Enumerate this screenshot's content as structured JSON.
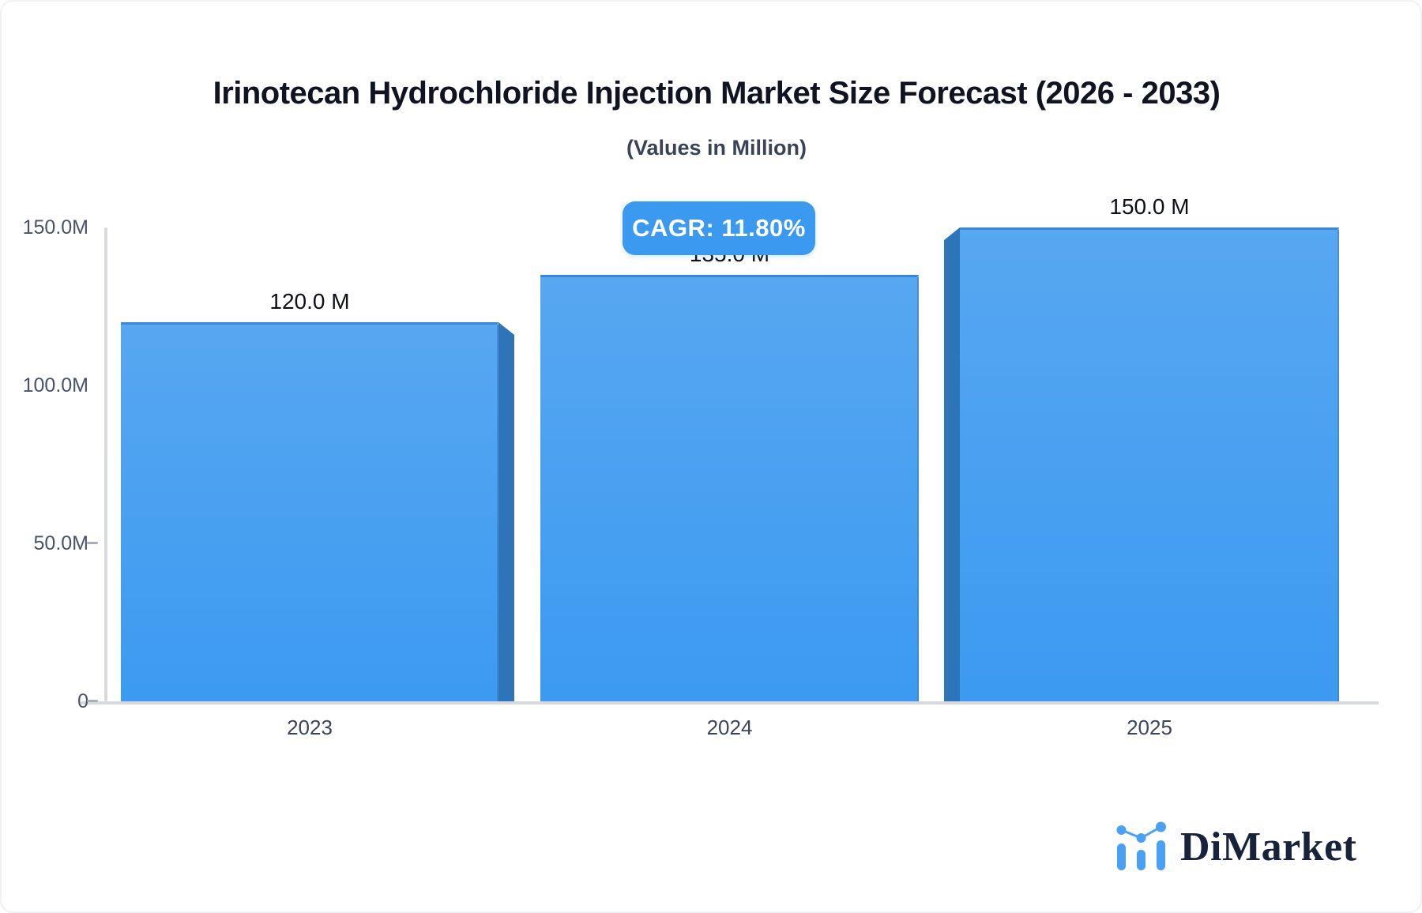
{
  "title": "Irinotecan Hydrochloride Injection Market Size Forecast (2026 - 2033)",
  "subtitle": "(Values in Million)",
  "badge": {
    "label": "CAGR: 11.80%",
    "color": "#3b9af0"
  },
  "chart_data": {
    "type": "bar",
    "title": "Irinotecan Hydrochloride Injection Market Size Forecast (2026 - 2033)",
    "subtitle": "(Values in Million)",
    "categories": [
      "2023",
      "2024",
      "2025"
    ],
    "values": [
      120,
      135,
      150
    ],
    "value_labels": [
      "120.0 M",
      "135.0 M",
      "150.0 M"
    ],
    "unit": "Million",
    "cagr": "11.80%",
    "xlabel": "",
    "ylabel": "",
    "ylim": [
      0,
      150
    ],
    "y_ticks": [
      "150.0M",
      "100.0M",
      "50.0M",
      "0"
    ],
    "grid": "off",
    "legend": "none",
    "colors": {
      "bar_top": "#57a7f1",
      "bar_bottom": "#3c9af1",
      "bar_side_3d": "#2d74b8",
      "bar_top_edge": "#3a86d8",
      "axis": "#d6d9de",
      "tick_text": "#475368",
      "category_text": "#3b4559",
      "value_text": "#0c1016"
    }
  },
  "logo": {
    "text": "DiMarket",
    "icon": "bar-line-chart-icon",
    "icon_color": "#4aa0f5",
    "text_color": "#16233a"
  }
}
